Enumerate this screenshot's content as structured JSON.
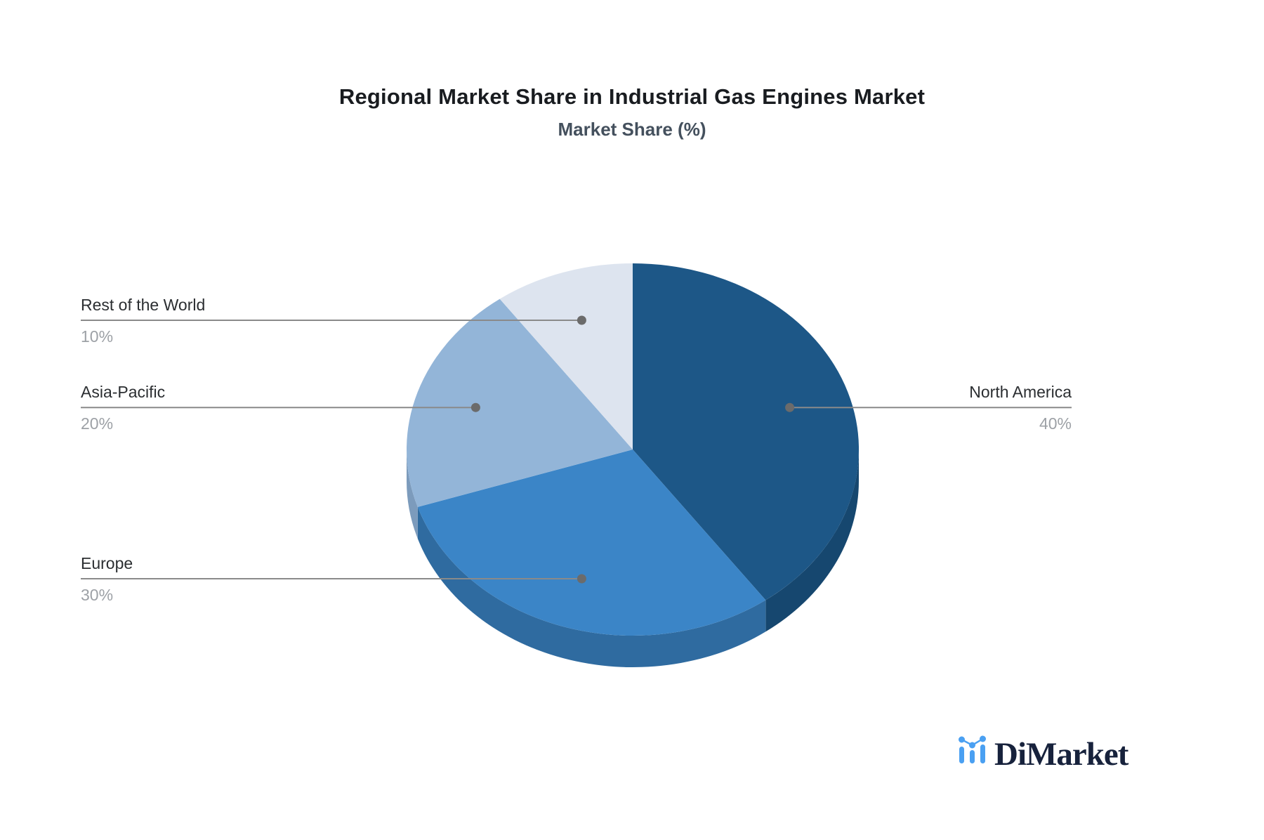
{
  "chart_data": {
    "type": "pie",
    "style": "pie3d",
    "title": "Regional Market Share in Industrial Gas Engines Market",
    "subtitle": "Market Share (%)",
    "unit": "%",
    "direction": "clockwise",
    "start_angle": "12-o'clock",
    "slices": [
      {
        "label": "North America",
        "value": 40,
        "display": "40%",
        "color": "#1D5787",
        "side_color": "#16476F",
        "callout_side": "right"
      },
      {
        "label": "Europe",
        "value": 30,
        "display": "30%",
        "color": "#3B85C7",
        "side_color": "#2F6BA0",
        "callout_side": "left"
      },
      {
        "label": "Asia-Pacific",
        "value": 20,
        "display": "20%",
        "color": "#93B5D8",
        "side_color": "#7C9BBC",
        "callout_side": "left"
      },
      {
        "label": "Rest of the World",
        "value": 10,
        "display": "10%",
        "color": "#DDE4EF",
        "callout_side": "left"
      }
    ],
    "callout": {
      "line_color": "#8A8A8A",
      "dot_color": "#6B6B6B",
      "label_color": "#2B2E31",
      "value_color": "#9DA1A6"
    }
  },
  "logo": {
    "text": "DiMarket",
    "accent_color": "#4AA0F2",
    "text_color": "#17223C"
  }
}
